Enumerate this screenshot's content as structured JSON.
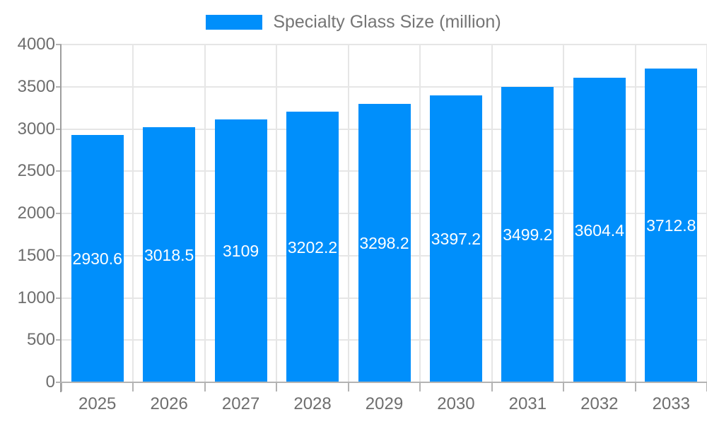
{
  "chart_data": {
    "type": "bar",
    "title": "Specialty Glass Size (million)",
    "categories": [
      "2025",
      "2026",
      "2027",
      "2028",
      "2029",
      "2030",
      "2031",
      "2032",
      "2033"
    ],
    "values": [
      2930.6,
      3018.5,
      3109,
      3202.2,
      3298.2,
      3397.2,
      3499.2,
      3604.4,
      3712.8
    ],
    "bar_labels": [
      "2930.6",
      "3018.5",
      "3109",
      "3202.2",
      "3298.2",
      "3397.2",
      "3499.2",
      "3604.4",
      "3712.8"
    ],
    "ytick_labels": [
      "0",
      "500",
      "1000",
      "1500",
      "2000",
      "2500",
      "3000",
      "3500",
      "4000"
    ],
    "xlabel": "",
    "ylabel": "",
    "ylim": [
      0,
      4000
    ],
    "ytick_step": 500,
    "grid": true,
    "legend_position": "top",
    "colors": {
      "bar": "#008FFB",
      "grid": "#e6e6e6",
      "x_axis_line": "#b3b3b3",
      "y_axis_line": "#9e9e9e",
      "tick": "#b3b3b3",
      "axis_label_text": "#6e6e6e",
      "legend_text": "#757575",
      "bar_label_text": "#ffffff",
      "background": "#ffffff"
    }
  }
}
